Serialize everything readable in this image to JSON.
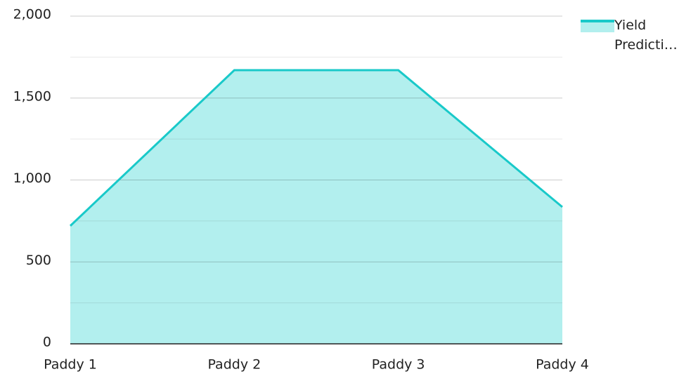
{
  "chart_data": {
    "type": "area",
    "categories": [
      "Paddy 1",
      "Paddy 2",
      "Paddy 3",
      "Paddy 4"
    ],
    "series": [
      {
        "name": "Yield Predicti…",
        "color": "#19c9c9",
        "fill": "#b2efee",
        "values": [
          720,
          1670,
          1670,
          835
        ]
      }
    ],
    "ylim": [
      0,
      2000
    ],
    "yticks": [
      0,
      {
        "value": 500,
        "label": "500"
      },
      {
        "value": 1000,
        "label": "1,000"
      },
      {
        "value": 1500,
        "label": "1,500"
      },
      {
        "value": 2000,
        "label": "2,000"
      }
    ],
    "minor_yticks": [
      250,
      750,
      1250,
      1750
    ],
    "grid": true,
    "legend": "right"
  }
}
